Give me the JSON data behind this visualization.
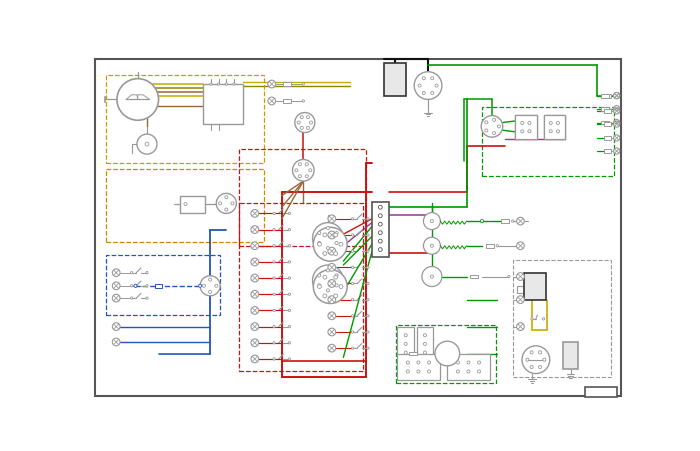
{
  "bg_color": "#ffffff",
  "border_color": "#555555",
  "fig_width": 7.0,
  "fig_height": 4.52,
  "colors": {
    "red": "#cc1111",
    "green": "#009900",
    "blue": "#2255bb",
    "yellow": "#ccaa00",
    "brown": "#996633",
    "purple": "#993399",
    "orange": "#cc6600",
    "gray": "#aaaaaa",
    "black": "#111111",
    "pink": "#bb3377",
    "darkred": "#991111",
    "teal": "#007777",
    "comp": "#999999",
    "olive": "#888800"
  }
}
